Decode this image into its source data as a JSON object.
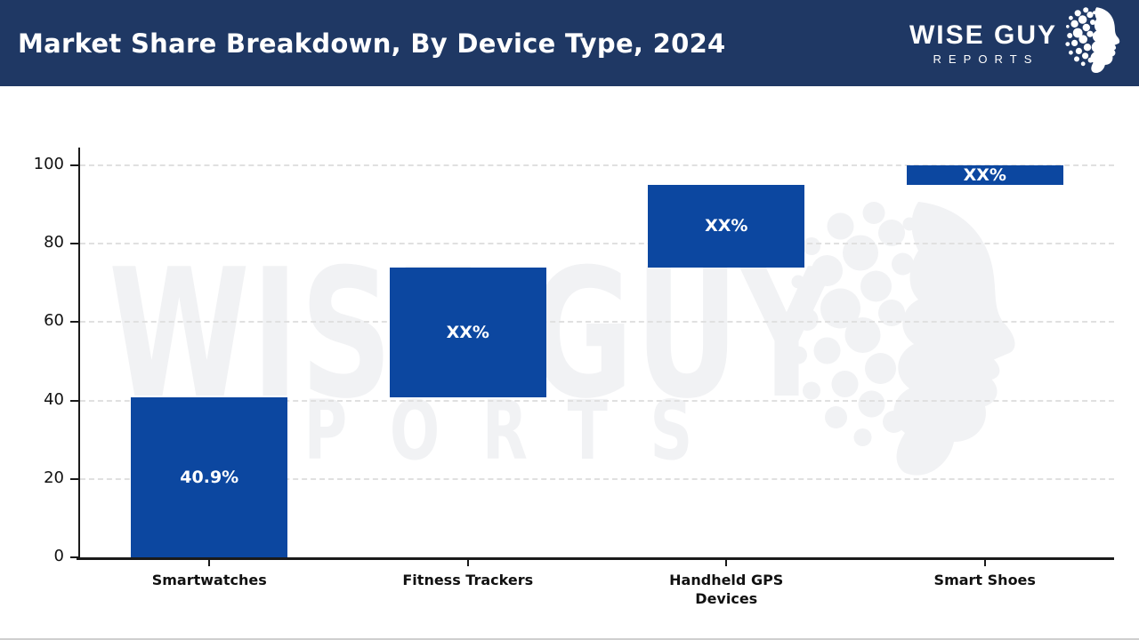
{
  "header": {
    "title": "Market Share Breakdown, By Device Type, 2024",
    "logo": {
      "wordmark": "WISE GUY",
      "subtext": "REPORTS"
    }
  },
  "watermark": {
    "line1": "WISE GUY",
    "line2": "REPORTS"
  },
  "colors": {
    "header_bg": "#1f3864",
    "bar": "#0c47a0",
    "bar_label": "#ffffff",
    "grid": "#e0e0e0",
    "axis": "#1a1a1a",
    "watermark": "#f1f2f4"
  },
  "chart_data": {
    "type": "bar",
    "subtype": "waterfall",
    "title": "Market Share Breakdown, By Device Type, 2024",
    "xlabel": "",
    "ylabel": "",
    "categories": [
      "Smartwatches",
      "Fitness Trackers",
      "Handheld GPS Devices",
      "Smart Shoes"
    ],
    "series": [
      {
        "name": "Market share (%)",
        "segments": [
          {
            "category": "Smartwatches",
            "start": 0,
            "end": 40.9,
            "label": "40.9%"
          },
          {
            "category": "Fitness Trackers",
            "start": 40.9,
            "end": 74,
            "label": "XX%"
          },
          {
            "category": "Handheld GPS Devices",
            "start": 74,
            "end": 95,
            "label": "XX%"
          },
          {
            "category": "Smart Shoes",
            "start": 95,
            "end": 100,
            "label": "XX%"
          }
        ]
      }
    ],
    "ylim": [
      0,
      104
    ],
    "yticks": [
      0,
      20,
      40,
      60,
      80,
      100
    ],
    "grid": "horizontal-dashed",
    "legend": "none"
  }
}
